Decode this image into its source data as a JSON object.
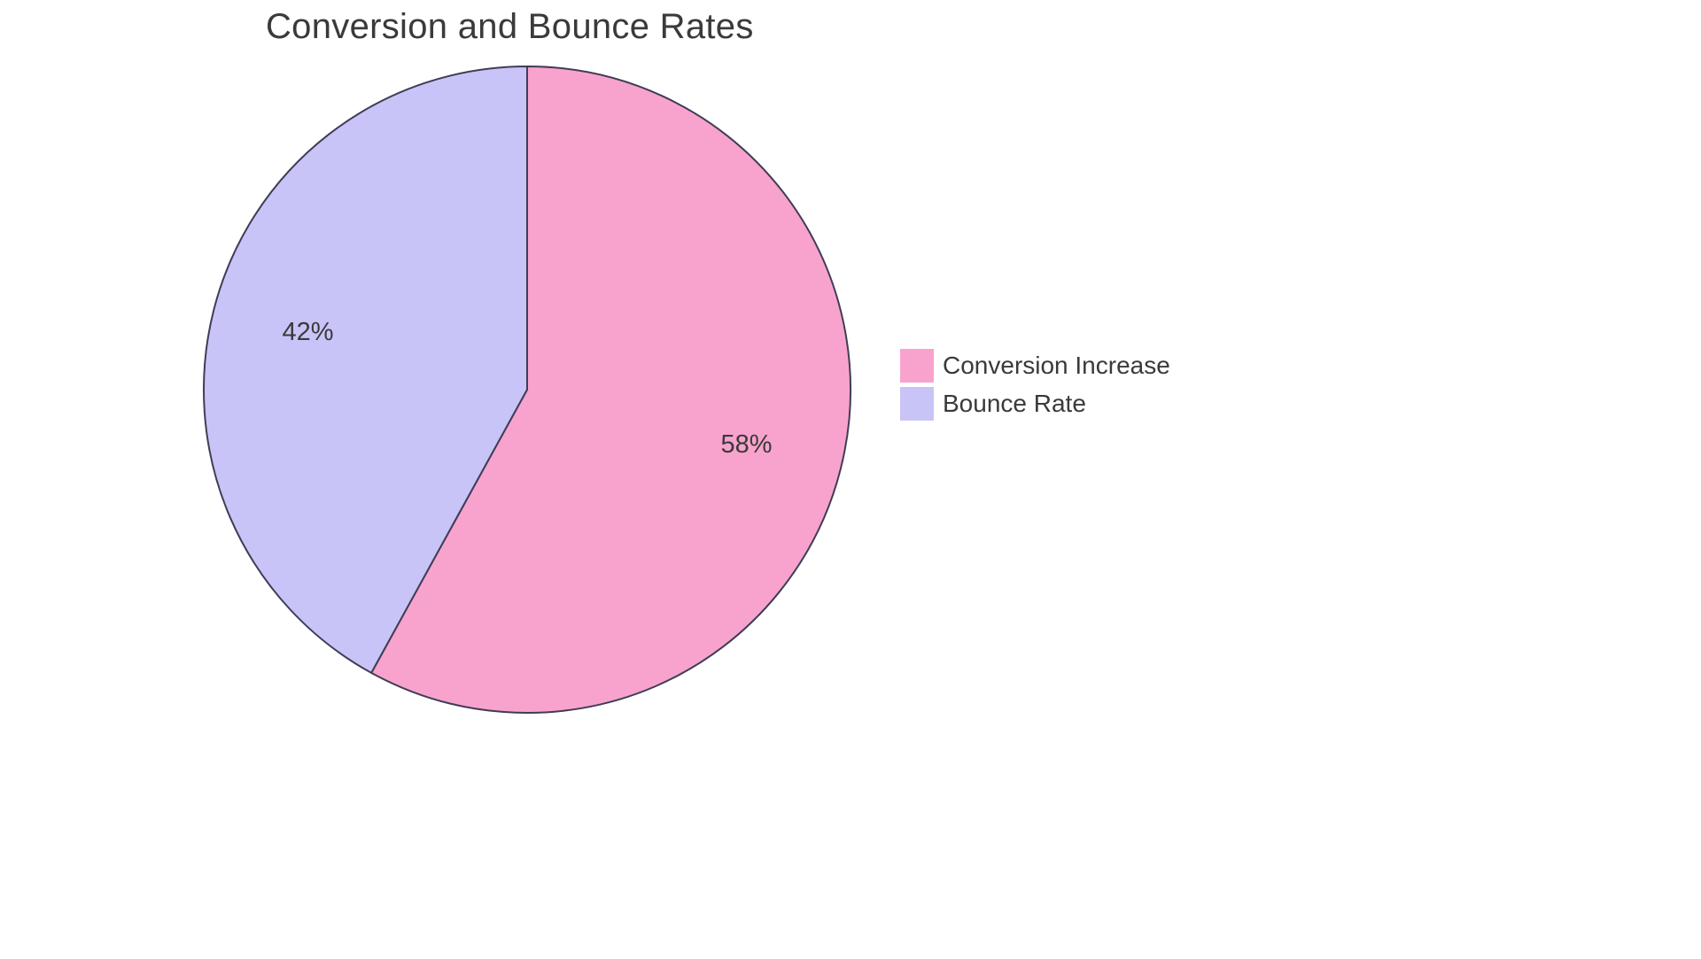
{
  "chart_data": {
    "type": "pie",
    "title": "Conversion and Bounce Rates",
    "slices": [
      {
        "label": "Conversion Increase",
        "value": 58,
        "display": "58%",
        "color": "#F8A3CD"
      },
      {
        "label": "Bounce Rate",
        "value": 42,
        "display": "42%",
        "color": "#C9C4F7"
      }
    ],
    "start_angle": "top",
    "direction": "clockwise",
    "stroke_color": "#3F3D56",
    "label_color": "#3A3A3A",
    "title_color": "#3A3A3A",
    "legend_position": "right",
    "background": "#FFFFFF"
  }
}
